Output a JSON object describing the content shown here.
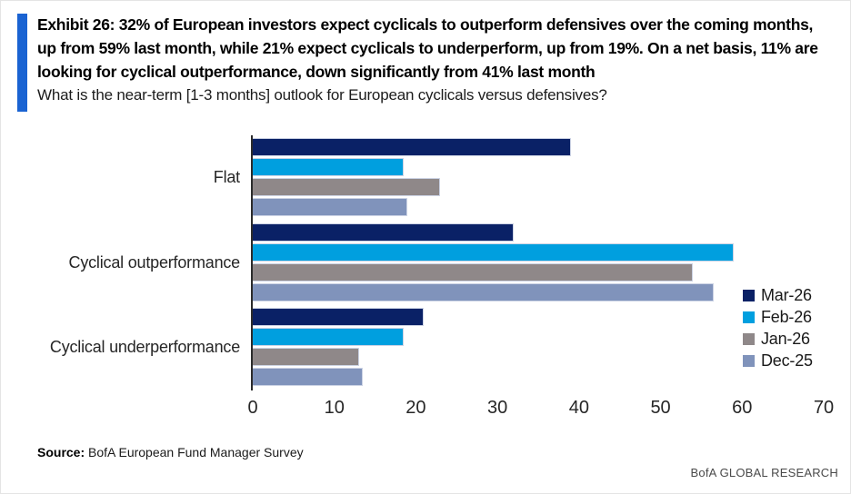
{
  "exhibit": {
    "title": "Exhibit 26: 32% of European investors expect cyclicals to outperform defensives over the coming months, up from 59% last month, while 21% expect cyclicals to underperform, up from 19%. On a net basis, 11% are looking for cyclical outperformance, down significantly from 41% last month",
    "subtitle": "What is the near-term [1-3 months] outlook for European cyclicals versus defensives?",
    "accent_color": "#1a63d2"
  },
  "chart_data": {
    "type": "bar",
    "orientation": "horizontal",
    "title": "What is the near-term [1-3 months] outlook for European cyclicals versus defensives?",
    "categories": [
      "Flat",
      "Cyclical outperformance",
      "Cyclical underperformance"
    ],
    "series": [
      {
        "name": "Mar-26",
        "color": "#0a2166",
        "values": [
          39,
          32,
          21
        ]
      },
      {
        "name": "Feb-26",
        "color": "#009fdf",
        "values": [
          18.5,
          59,
          18.5
        ]
      },
      {
        "name": "Jan-26",
        "color": "#8f8889",
        "values": [
          23,
          54,
          13
        ]
      },
      {
        "name": "Dec-25",
        "color": "#8093bb",
        "values": [
          19,
          56.5,
          13.5
        ]
      }
    ],
    "xlabel": "",
    "ylabel": "",
    "xlim": [
      0,
      70
    ],
    "x_ticks": [
      "0",
      "10",
      "20",
      "30",
      "40",
      "50",
      "60",
      "70"
    ],
    "grid": false,
    "legend_position": "right"
  },
  "footer": {
    "source_label": "Source:",
    "source_text": " BofA European Fund Manager Survey",
    "branding": "BofA GLOBAL RESEARCH"
  }
}
